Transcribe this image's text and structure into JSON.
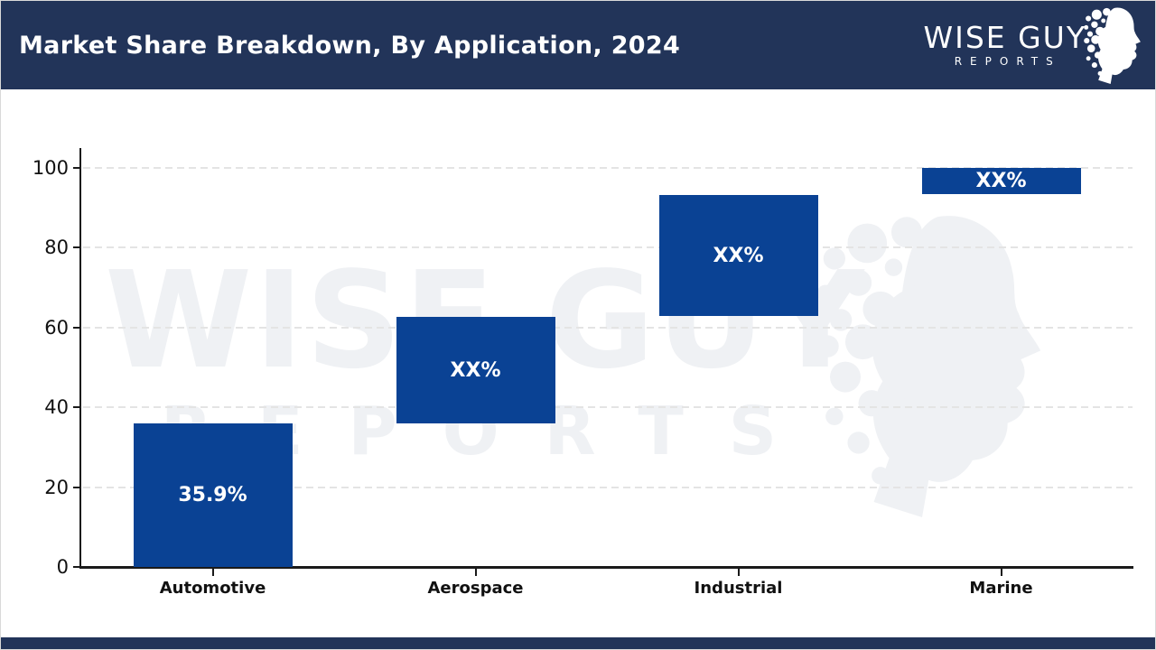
{
  "header": {
    "title": "Market Share Breakdown, By Application, 2024",
    "logo": {
      "line1": "WISE GUY",
      "line2": "REPORTS"
    }
  },
  "watermark": {
    "line1": "WISE GUY",
    "line2": "REPORTS"
  },
  "colors": {
    "header_navy": "#223459",
    "bar_blue": "#0a4294",
    "watermark_gray": "#eff1f4",
    "grid_gray": "#e4e4e4",
    "axis_black": "#1a1a1a"
  },
  "chart_data": {
    "type": "bar",
    "subtype": "waterfall-floating-bars",
    "title": "Market Share Breakdown, By Application, 2024",
    "categories": [
      "Automotive",
      "Aerospace",
      "Industrial",
      "Marine"
    ],
    "segments": [
      [
        0,
        35.9
      ],
      [
        35.9,
        62.6
      ],
      [
        62.8,
        93.1
      ],
      [
        93.3,
        100
      ]
    ],
    "bar_labels": [
      "35.9%",
      "XX%",
      "XX%",
      "XX%"
    ],
    "yticks": [
      0,
      20,
      40,
      60,
      80,
      100
    ],
    "ylim": [
      0,
      105
    ],
    "xlabel": "",
    "ylabel": "",
    "grid": "horizontal-dashed",
    "legend": "none",
    "bar_color": "#0a4294"
  }
}
